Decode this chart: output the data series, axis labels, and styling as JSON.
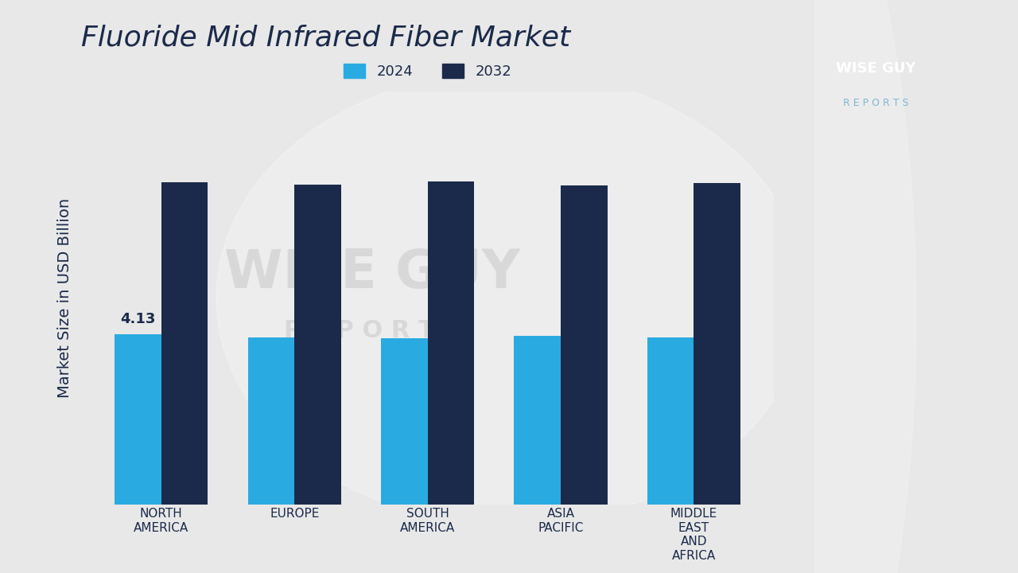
{
  "title": "Fluoride Mid Infrared Fiber Market",
  "ylabel": "Market Size in USD Billion",
  "categories": [
    "NORTH\nAMERICA",
    "EUROPE",
    "SOUTH\nAMERICA",
    "ASIA\nPACIFIC",
    "MIDDLE\nEAST\nAND\nAFRICA"
  ],
  "values_2024": [
    4.13,
    4.05,
    4.02,
    4.08,
    4.04
  ],
  "values_2032": [
    7.8,
    7.75,
    7.82,
    7.72,
    7.78
  ],
  "color_2024": "#29ABE2",
  "color_2032": "#1B2A4A",
  "bar_annotation": "4.13",
  "bar_annotation_index": 0,
  "background_color": "#E8E8E8",
  "right_panel_color": "#1B2A4A",
  "legend_labels": [
    "2024",
    "2032"
  ],
  "title_color": "#1B2A4A",
  "ylabel_color": "#1B2A4A",
  "bar_width": 0.35,
  "ylim": [
    0,
    10
  ],
  "title_fontsize": 26,
  "ylabel_fontsize": 14,
  "tick_fontsize": 11,
  "legend_fontsize": 13,
  "annotation_fontsize": 13
}
